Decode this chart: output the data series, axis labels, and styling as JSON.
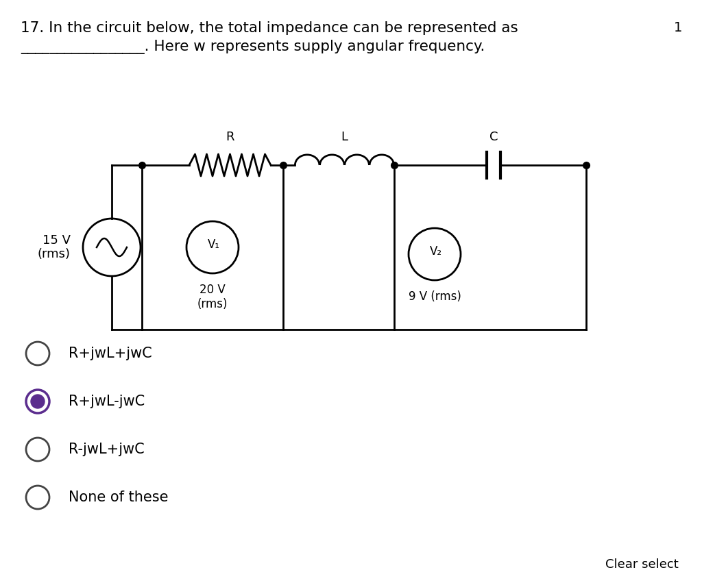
{
  "title_text": "17. In the circuit below, the total impedance can be represented as",
  "subtitle_text": "_________________. Here w represents supply angular frequency.",
  "question_number_right": "1",
  "options": [
    "R+jwL+jwC",
    "R+jwL-jwC",
    "R-jwL+jwC",
    "None of these"
  ],
  "selected_option": 1,
  "bg_color": "#ffffff",
  "text_color": "#000000",
  "option_color": "#5B2D8E",
  "circuit": {
    "source_label": "15 V\n(rms)",
    "v1_label": "V₁",
    "v1_sub_label": "20 V\n(rms)",
    "v2_label": "V₂",
    "v2_sub_label": "9 V (rms)",
    "r_label": "R",
    "l_label": "L",
    "c_label": "C"
  },
  "footer_text": "Clear select"
}
